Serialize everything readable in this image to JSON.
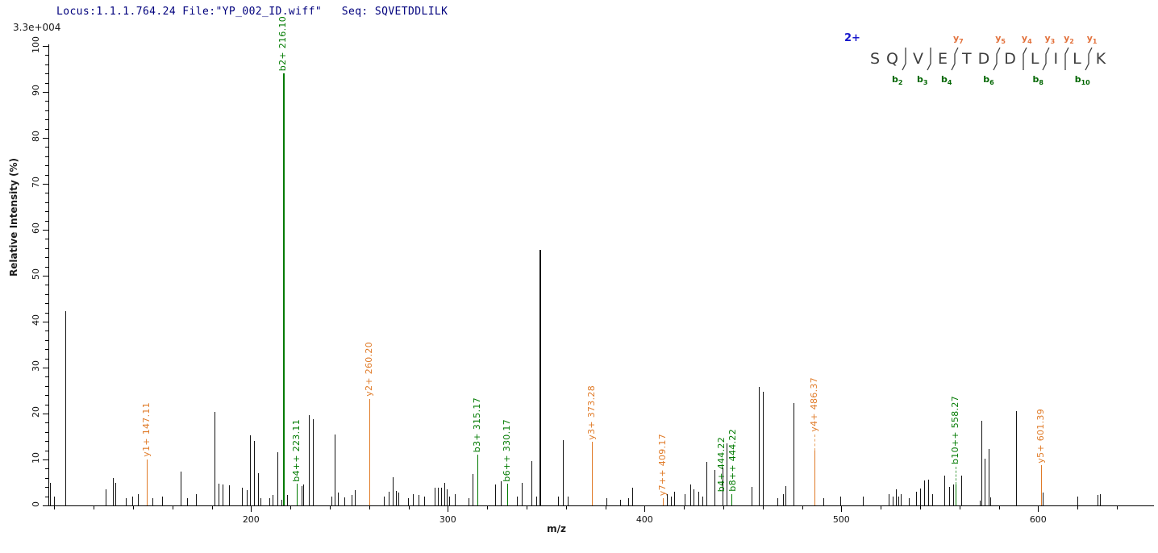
{
  "header": {
    "text": "Locus:1.1.1.764.24 File:\"YP_002_ID.wiff\"   Seq: SQVETDDLILK"
  },
  "colors": {
    "header_text": "#00007d",
    "black_peak": "#141414",
    "b_ion_green": "#007a00",
    "y_ion_orange": "#e07b28",
    "charge_blue": "#1717cc",
    "residue_gray": "#3f3f3f"
  },
  "sequence": {
    "charge": "2+",
    "peptide": "SQVETDDLILK",
    "residues": [
      {
        "aa": "S"
      },
      {
        "aa": "Q",
        "b": "b2"
      },
      {
        "aa": "V",
        "b": "b3"
      },
      {
        "aa": "E",
        "b": "b4",
        "y": "y7"
      },
      {
        "aa": "T"
      },
      {
        "aa": "D",
        "b": "b6",
        "y": "y5"
      },
      {
        "aa": "D",
        "y": "y4"
      },
      {
        "aa": "L",
        "b": "b8",
        "y": "y3"
      },
      {
        "aa": "I",
        "y": "y2"
      },
      {
        "aa": "L",
        "b": "b10",
        "y": "y1"
      },
      {
        "aa": "K"
      }
    ]
  },
  "chart_data": {
    "type": "stick",
    "subtype": "ms2-fragmentation-spectrum",
    "intensity_scale_label": "3.3e+004",
    "xlabel": "m/z",
    "ylabel": "Relative Intensity (%)",
    "xlim": [
      97,
      658
    ],
    "ylim": [
      0,
      100
    ],
    "x_major_ticks": [
      200,
      300,
      400,
      500,
      600
    ],
    "x_minor_step": 20,
    "y_major_ticks": [
      0,
      10,
      20,
      30,
      40,
      50,
      60,
      70,
      80,
      90,
      100
    ],
    "y_minor_step": 2,
    "grid": false,
    "peaks_annotated": [
      {
        "ion": "y1+",
        "mz": 147.11,
        "intensity": 10.0,
        "series": "y",
        "label": "y1+ 147.11"
      },
      {
        "ion": "b2+",
        "mz": 216.1,
        "intensity": 94.0,
        "series": "b",
        "label": "b2+ 216.10"
      },
      {
        "ion": "b4pp",
        "mz": 223.11,
        "intensity": 4.7,
        "series": "b",
        "label": "b4++ 223.11"
      },
      {
        "ion": "y2+",
        "mz": 260.2,
        "intensity": 23.2,
        "series": "y",
        "label": "y2+ 260.20"
      },
      {
        "ion": "b3+",
        "mz": 315.17,
        "intensity": 11.0,
        "series": "b",
        "label": "b3+ 315.17"
      },
      {
        "ion": "b6pp",
        "mz": 330.17,
        "intensity": 4.7,
        "series": "b",
        "label": "b6++ 330.17"
      },
      {
        "ion": "y3+",
        "mz": 373.28,
        "intensity": 13.8,
        "series": "y",
        "label": "y3+ 373.28"
      },
      {
        "ion": "y7pp",
        "mz": 409.17,
        "intensity": 1.6,
        "series": "y",
        "label": "y7++ 409.17"
      },
      {
        "ion": "b4+",
        "mz": 444.22,
        "intensity": 2.5,
        "series": "b",
        "label": "b4+ 444.22",
        "dx": -12
      },
      {
        "ion": "b8pp",
        "mz": 444.22,
        "intensity": 2.5,
        "series": "b",
        "label": "b8++ 444.22",
        "dx": 2
      },
      {
        "ion": "y4+",
        "mz": 486.37,
        "intensity": 12.0,
        "series": "y",
        "label": "y4+ 486.37",
        "leader": 20
      },
      {
        "ion": "b10pp",
        "mz": 558.27,
        "intensity": 4.6,
        "series": "b",
        "label": "b10++ 558.27",
        "leader": 22
      },
      {
        "ion": "y5+",
        "mz": 601.39,
        "intensity": 8.7,
        "series": "y",
        "label": "y5+ 601.39"
      }
    ],
    "peaks_unlabeled": [
      [
        98,
        5
      ],
      [
        100,
        2
      ],
      [
        105.5,
        42.3
      ],
      [
        126,
        3.5
      ],
      [
        129.6,
        6
      ],
      [
        131,
        5
      ],
      [
        136.2,
        1.5
      ],
      [
        139.5,
        2
      ],
      [
        142.3,
        2.5
      ],
      [
        149.7,
        1.5
      ],
      [
        154.6,
        2
      ],
      [
        164.1,
        7.3
      ],
      [
        167.3,
        1.5
      ],
      [
        171.8,
        2.5
      ],
      [
        181.3,
        20.3
      ],
      [
        183.3,
        4.7
      ],
      [
        185.4,
        4.5
      ],
      [
        188.6,
        4.4
      ],
      [
        195.2,
        3.8
      ],
      [
        197.7,
        3.3
      ],
      [
        199.3,
        15.2
      ],
      [
        201.4,
        14
      ],
      [
        203.4,
        7
      ],
      [
        204.6,
        1.5
      ],
      [
        209.1,
        1.5
      ],
      [
        210.8,
        2.2
      ],
      [
        213.2,
        11.6
      ],
      [
        215.3,
        1.2
      ],
      [
        218.2,
        2.2
      ],
      [
        225.5,
        4.2
      ],
      [
        226.4,
        4.6
      ],
      [
        229.2,
        19.6
      ],
      [
        231.3,
        18.8
      ],
      [
        240.7,
        2
      ],
      [
        242.3,
        15.5
      ],
      [
        244,
        2.8
      ],
      [
        247.3,
        1.8
      ],
      [
        251,
        2.2
      ],
      [
        252.6,
        3.3
      ],
      [
        267.3,
        2
      ],
      [
        269.8,
        3
      ],
      [
        271.8,
        6.1
      ],
      [
        273.5,
        3.2
      ],
      [
        274.7,
        2.8
      ],
      [
        279.6,
        1.5
      ],
      [
        282.1,
        2.5
      ],
      [
        285,
        2.2
      ],
      [
        287.8,
        2
      ],
      [
        293.2,
        3.8
      ],
      [
        294.8,
        3.8
      ],
      [
        296.4,
        3.8
      ],
      [
        298.1,
        5
      ],
      [
        299.3,
        3.5
      ],
      [
        300.5,
        2
      ],
      [
        303.4,
        2.5
      ],
      [
        310.4,
        1.5
      ],
      [
        312.4,
        6.8
      ],
      [
        323.9,
        4.5
      ],
      [
        326.8,
        5.2
      ],
      [
        335,
        2
      ],
      [
        337.4,
        5
      ],
      [
        342.3,
        9.6
      ],
      [
        344.8,
        2
      ],
      [
        346.4,
        55.6
      ],
      [
        355.9,
        2
      ],
      [
        358.3,
        14.2
      ],
      [
        360.8,
        2
      ],
      [
        380.5,
        1.5
      ],
      [
        387.4,
        1.2
      ],
      [
        391.5,
        1.5
      ],
      [
        393.6,
        3.9
      ],
      [
        411.2,
        2.5
      ],
      [
        413.2,
        2
      ],
      [
        414.9,
        3
      ],
      [
        420.2,
        2.5
      ],
      [
        423.1,
        4.5
      ],
      [
        424.7,
        3.5
      ],
      [
        427.2,
        3
      ],
      [
        429.2,
        2
      ],
      [
        431.3,
        9.5
      ],
      [
        435.4,
        7.7
      ],
      [
        439.5,
        8.3
      ],
      [
        441.5,
        13.5
      ],
      [
        454.2,
        4
      ],
      [
        457.9,
        25.8
      ],
      [
        460,
        24.7
      ],
      [
        467.3,
        1.5
      ],
      [
        470.2,
        2.5
      ],
      [
        471.4,
        4.2
      ],
      [
        475.5,
        22.3
      ],
      [
        490.7,
        1.5
      ],
      [
        499.3,
        2
      ],
      [
        510.8,
        2
      ],
      [
        523.9,
        2.5
      ],
      [
        526,
        2
      ],
      [
        527.6,
        3.5
      ],
      [
        528.8,
        2
      ],
      [
        530,
        2.5
      ],
      [
        534.1,
        1.5
      ],
      [
        537.8,
        3
      ],
      [
        539.9,
        3.7
      ],
      [
        541.9,
        5.4
      ],
      [
        544,
        5.6
      ],
      [
        546,
        2.5
      ],
      [
        552.2,
        6.5
      ],
      [
        554.6,
        4
      ],
      [
        556.7,
        4.6
      ],
      [
        560.8,
        6.5
      ],
      [
        570.2,
        1
      ],
      [
        571,
        18.5
      ],
      [
        572.7,
        10.2
      ],
      [
        574.7,
        12.3
      ],
      [
        575.5,
        1.8
      ],
      [
        588.6,
        20.6
      ],
      [
        602.2,
        2.8
      ],
      [
        619.8,
        2
      ],
      [
        630,
        2.2
      ],
      [
        631.6,
        2.5
      ]
    ]
  }
}
